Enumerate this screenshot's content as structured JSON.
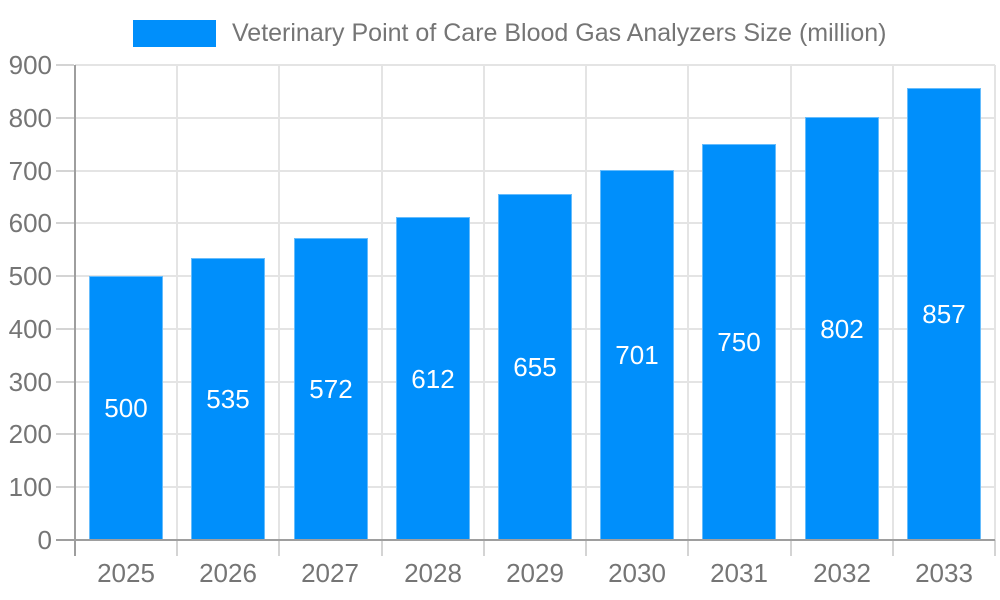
{
  "legend": {
    "series_label": "Veterinary Point of Care Blood Gas Analyzers Size (million)"
  },
  "chart_data": {
    "type": "bar",
    "title": "Veterinary Point of Care Blood Gas Analyzers Size (million)",
    "categories": [
      "2025",
      "2026",
      "2027",
      "2028",
      "2029",
      "2030",
      "2031",
      "2032",
      "2033"
    ],
    "values": [
      500,
      535,
      572,
      612,
      655,
      701,
      750,
      802,
      857
    ],
    "xlabel": "",
    "ylabel": "",
    "ylim": [
      0,
      900
    ],
    "ytick_interval": 100,
    "yticks": [
      0,
      100,
      200,
      300,
      400,
      500,
      600,
      700,
      800,
      900
    ],
    "grid": true,
    "legend_position": "top",
    "data_labels": "inside-center",
    "colors": {
      "bar": "#008FFB",
      "grid": "#e4e4e4",
      "tick": "#d4d4d4",
      "axis_line": "#9e9e9e",
      "text": "#757575",
      "value_label": "#ffffff",
      "background": "#ffffff"
    }
  }
}
